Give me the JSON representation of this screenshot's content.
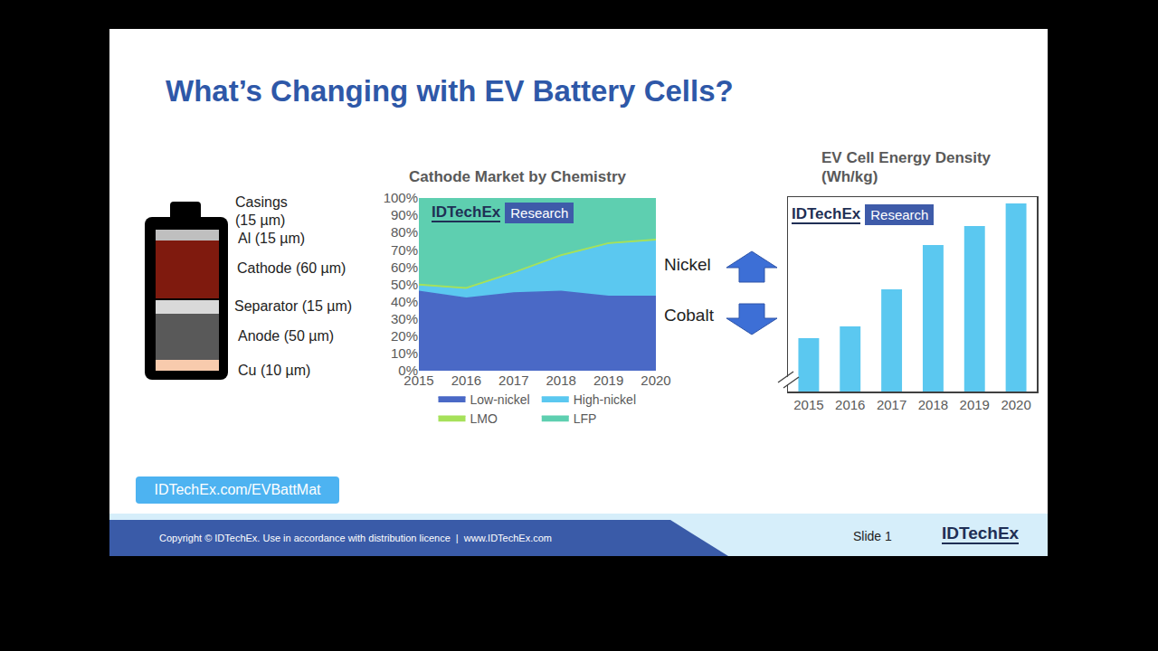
{
  "slide": {
    "title": "What’s Changing with EV Battery Cells?",
    "battery_layers": [
      {
        "label": "Casings (15 µm)",
        "color": "#000000"
      },
      {
        "label": "Al (15 µm)",
        "color": "#bfbfbf"
      },
      {
        "label": "Cathode (60 µm)",
        "color": "#7f1a0e"
      },
      {
        "label": "Separator (15 µm)",
        "color": "#d9d9d9"
      },
      {
        "label": "Anode (50 µm)",
        "color": "#595959"
      },
      {
        "label": "Cu (10 µm)",
        "color": "#f8cbad"
      }
    ],
    "arrows": [
      {
        "label": "Nickel",
        "direction": "up",
        "color": "#3d6fd6"
      },
      {
        "label": "Cobalt",
        "direction": "down",
        "color": "#3d6fd6"
      }
    ],
    "link": "IDTechEx.com/EVBattMat",
    "footer": {
      "copyright": "Copyright © IDTechEx. Use in accordance with distribution licence  |  www.IDTechEx.com",
      "slide": "Slide 1",
      "brand": "IDTechEx"
    }
  },
  "chart_data": [
    {
      "type": "area",
      "title": "Cathode Market by Chemistry",
      "stacked": true,
      "x": [
        2015,
        2016,
        2017,
        2018,
        2019,
        2020
      ],
      "xlim": [
        2015,
        2020
      ],
      "xticks": [
        2015,
        2016,
        2017,
        2018,
        2019,
        2020
      ],
      "ylim": [
        0,
        100
      ],
      "yticks": [
        {
          "value": 0,
          "label": "0%"
        },
        {
          "value": 10,
          "label": "10%"
        },
        {
          "value": 20,
          "label": "20%"
        },
        {
          "value": 30,
          "label": "30%"
        },
        {
          "value": 40,
          "label": "40%"
        },
        {
          "value": 50,
          "label": "50%"
        },
        {
          "value": 60,
          "label": "60%"
        },
        {
          "value": 70,
          "label": "70%"
        },
        {
          "value": 80,
          "label": "80%"
        },
        {
          "value": 90,
          "label": "90%"
        },
        {
          "value": 100,
          "label": "100%"
        }
      ],
      "grid": false,
      "legend": "bottom",
      "annotations": [
        {
          "text": "IDTechEx"
        },
        {
          "text": "Research"
        }
      ],
      "series": [
        {
          "name": "Low-nickel",
          "color": "#4a69c6",
          "values": [
            46,
            42,
            45,
            46,
            43,
            43
          ]
        },
        {
          "name": "High-nickel",
          "color": "#5bc8f0",
          "values": [
            3,
            5,
            11,
            20,
            30,
            32
          ]
        },
        {
          "name": "LMO",
          "color": "#a6e15a",
          "values": [
            1,
            1,
            1,
            1,
            1,
            1
          ]
        },
        {
          "name": "LFP",
          "color": "#5ecfb0",
          "values": [
            50,
            52,
            43,
            33,
            26,
            24
          ]
        }
      ]
    },
    {
      "type": "bar",
      "title": "EV Cell Energy Density (Wh/kg)",
      "categories": [
        "2015",
        "2016",
        "2017",
        "2018",
        "2019",
        "2020"
      ],
      "values": [
        27.4,
        33.5,
        52.6,
        75.3,
        85.1,
        96.7
      ],
      "color": "#5bc8f0",
      "ylim": [
        0,
        100
      ],
      "tick_labels": "x",
      "grid": false,
      "annotations": [
        {
          "text": "IDTechEx"
        },
        {
          "text": "Research"
        }
      ]
    }
  ]
}
